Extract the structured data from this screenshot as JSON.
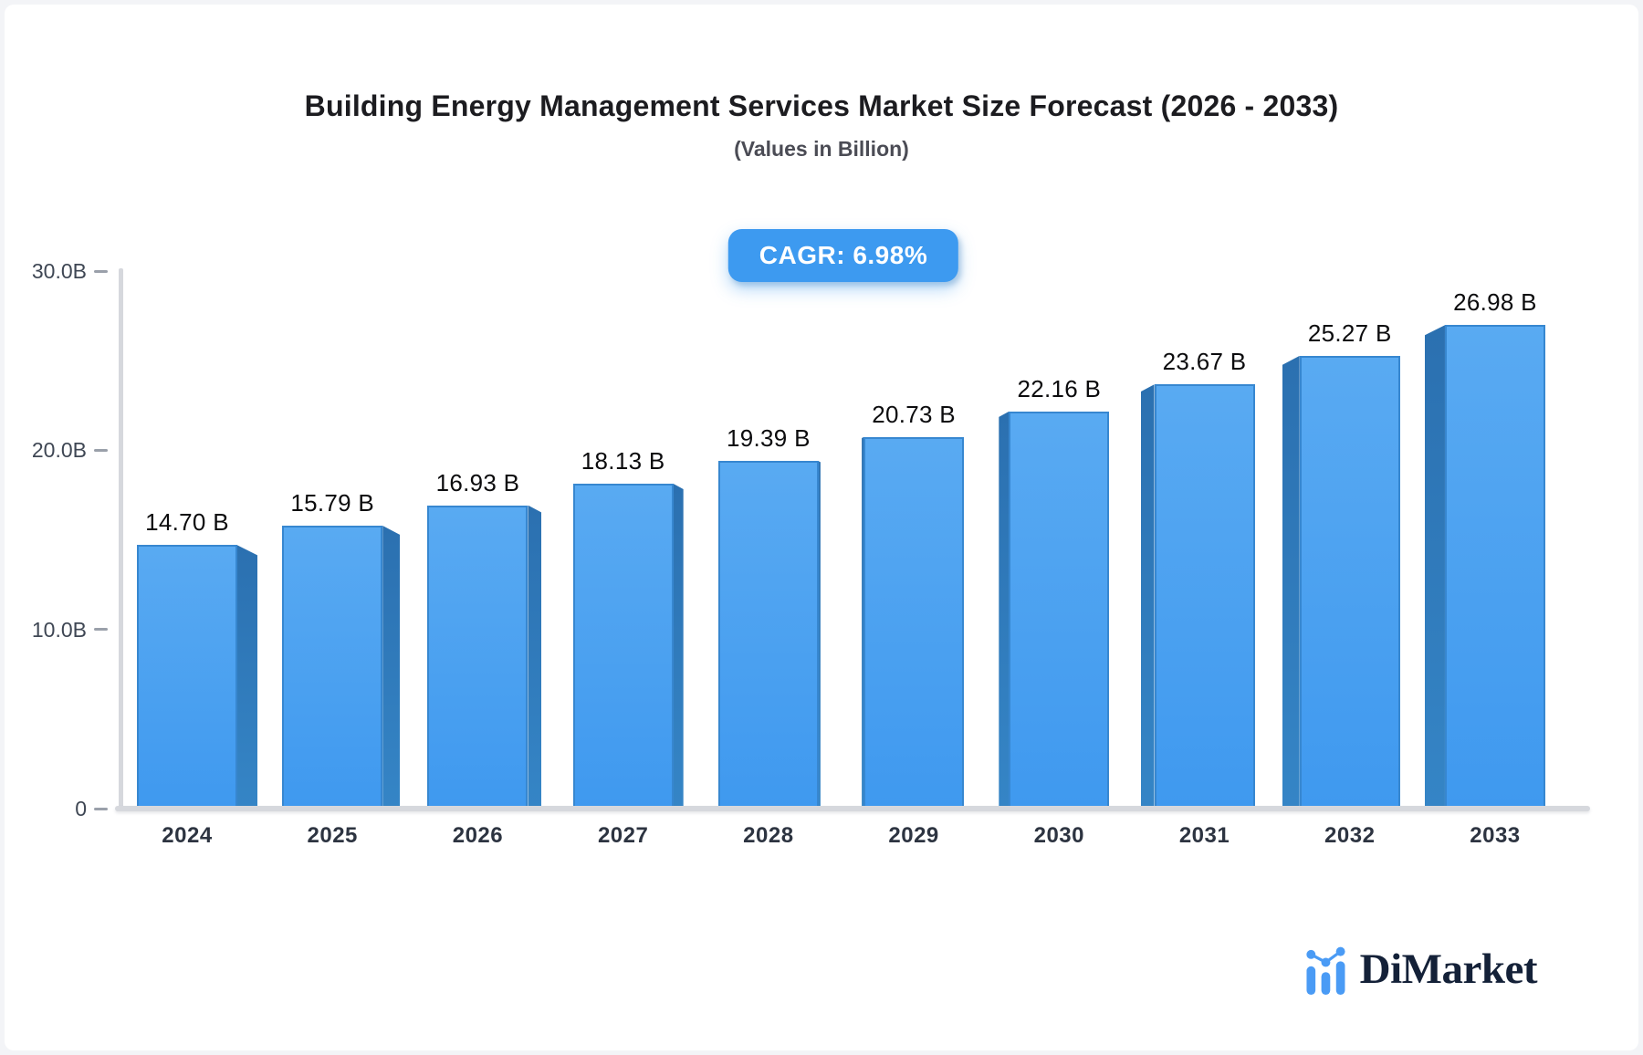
{
  "title": "Building Energy Management Services Market Size Forecast (2026 - 2033)",
  "subtitle": "(Values in Billion)",
  "badge": {
    "label": "CAGR: 6.98%"
  },
  "chart_data": {
    "type": "bar",
    "title": "Building Energy Management Services Market Size Forecast (2026 - 2033)",
    "subtitle": "(Values in Billion)",
    "unit": "Billion USD",
    "categories": [
      "2024",
      "2025",
      "2026",
      "2027",
      "2028",
      "2029",
      "2030",
      "2031",
      "2032",
      "2033"
    ],
    "values": [
      14.7,
      15.79,
      16.93,
      18.13,
      19.39,
      20.73,
      22.16,
      23.67,
      25.27,
      26.98
    ],
    "value_labels": [
      "14.70 B",
      "15.79 B",
      "16.93 B",
      "18.13 B",
      "19.39 B",
      "20.73 B",
      "22.16 B",
      "23.67 B",
      "25.27 B",
      "26.98 B"
    ],
    "cagr": "6.98%",
    "xlabel": "",
    "ylabel": "",
    "ylim": [
      0,
      30
    ],
    "y_ticks": [
      {
        "label": "30.0B",
        "value": 30
      },
      {
        "label": "20.0B",
        "value": 20
      },
      {
        "label": "10.0B",
        "value": 10
      },
      {
        "label": "0",
        "value": 0
      }
    ],
    "grid": false,
    "legend": false,
    "bar_style": "3d-perspective"
  },
  "colors": {
    "accent": "#3d9af0",
    "bar_face_top": "#59aaf2",
    "bar_face_bottom": "#3f99ef",
    "bar_border": "#3787d0",
    "bar_side_top": "#2b70b0",
    "bar_side_bottom": "#3585c6",
    "axis": "#d6d8dd",
    "tick": "#9aa0aa"
  },
  "logo": {
    "text": "DiMarket"
  }
}
